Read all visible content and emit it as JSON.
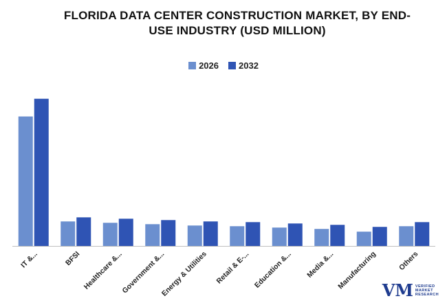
{
  "chart_data": {
    "type": "bar",
    "title": "FLORIDA DATA CENTER CONSTRUCTION MARKET, BY END-USE INDUSTRY (USD MILLION)",
    "title_lines": [
      "FLORIDA DATA CENTER CONSTRUCTION MARKET, BY END-",
      "USE INDUSTRY (USD MILLION)"
    ],
    "categories": [
      "IT &...",
      "BFSI",
      "Healthcare &...",
      "Government &...",
      "Energy & Utilities",
      "Retail & E-...",
      "Education &...",
      "Media &...",
      "Manufacturing",
      "Others"
    ],
    "series": [
      {
        "name": "2026",
        "color": "#6b8fcf",
        "values": [
          190,
          36,
          34,
          32,
          30,
          29,
          27,
          25,
          21,
          29
        ]
      },
      {
        "name": "2032",
        "color": "#2f54b4",
        "values": [
          216,
          42,
          40,
          38,
          36,
          35,
          33,
          31,
          28,
          35
        ]
      }
    ],
    "ylim": [
      0,
      250
    ],
    "xlabel": "",
    "ylabel": "",
    "grid": false,
    "legend_position": "top-center"
  },
  "logo": {
    "mark": "VM",
    "line1": "VERIFIED",
    "line2": "MARKET",
    "line3": "RESEARCH"
  }
}
